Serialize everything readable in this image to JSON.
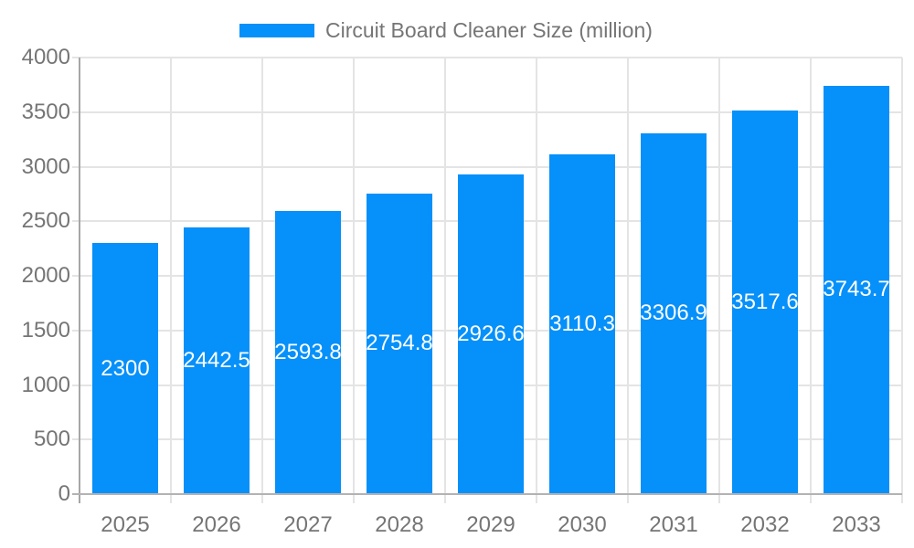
{
  "chart_data": {
    "type": "bar",
    "title": "Circuit Board Cleaner Size (million)",
    "legend": {
      "position": "top",
      "entries": [
        "Circuit Board Cleaner Size (million)"
      ]
    },
    "categories": [
      "2025",
      "2026",
      "2027",
      "2028",
      "2029",
      "2030",
      "2031",
      "2032",
      "2033"
    ],
    "series": [
      {
        "name": "Circuit Board Cleaner Size (million)",
        "values": [
          2300,
          2442.5,
          2593.8,
          2754.8,
          2926.6,
          3110.3,
          3306.9,
          3517.6,
          3743.7
        ]
      }
    ],
    "data_labels": [
      "2300",
      "2442.5",
      "2593.8",
      "2754.8",
      "2926.6",
      "3110.3",
      "3306.9",
      "3517.6",
      "3743.7"
    ],
    "xlabel": "",
    "ylabel": "",
    "ylim": [
      0,
      4000
    ],
    "ytick_step": 500,
    "yticks": [
      0,
      500,
      1000,
      1500,
      2000,
      2500,
      3000,
      3500,
      4000
    ],
    "grid": true,
    "colors": {
      "bar": "#0690fa",
      "text": "#757575",
      "bar_label_text": "#ffffff",
      "axis_line": "#a6a6a6",
      "gridline": "#e4e4e4",
      "baseline": "#b3b3b3",
      "background": "#ffffff"
    }
  }
}
